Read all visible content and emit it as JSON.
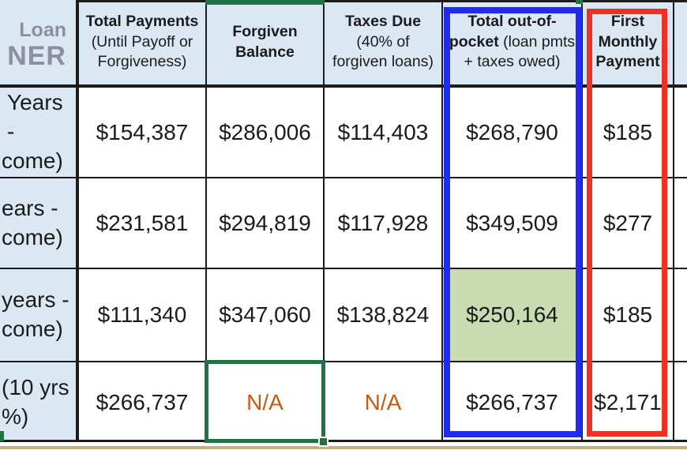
{
  "logo": {
    "line1": "Loan",
    "line2": "NER"
  },
  "headers": {
    "payments": {
      "title": "Total Payments",
      "sub1": "(Until Payoff or",
      "sub2": "Forgiveness)"
    },
    "forgiven": {
      "title1": "Forgiven",
      "title2": "Balance"
    },
    "taxes": {
      "title": "Taxes Due",
      "sub1": "(40% of",
      "sub2": "forgiven loans)"
    },
    "oop": {
      "title1": "Total out-of-",
      "title2_bold": "pocket",
      "title2_normal": " (loan pmts",
      "sub3": "+ taxes owed)"
    },
    "first": {
      "title1": "First",
      "title2": "Monthly",
      "title3": "Payment"
    }
  },
  "rows": [
    {
      "label1": "Years -",
      "label2": "come)",
      "values": [
        "$154,387",
        "$286,006",
        "$114,403",
        "$268,790",
        "$185"
      ]
    },
    {
      "label1": "ears -",
      "label2": "come)",
      "values": [
        "$231,581",
        "$294,819",
        "$117,928",
        "$349,509",
        "$277"
      ]
    },
    {
      "label1": "years -",
      "label2": "come)",
      "values": [
        "$111,340",
        "$347,060",
        "$138,824",
        "$250,164",
        "$185"
      ]
    },
    {
      "label1": "(10 yrs",
      "label2": "%)",
      "values": [
        "$266,737",
        "N/A",
        "N/A",
        "$266,737",
        "$2,171"
      ]
    }
  ],
  "colors": {
    "grid": "#1c1c1c",
    "header_bg": "#dbe8f4",
    "green_fill": "#c9dbb0",
    "green": "#217346",
    "blue": "#1f2cf0",
    "red": "#ef3125",
    "na": "#c55a11",
    "logo": "#8d8da4",
    "tan": "#c6b178"
  }
}
